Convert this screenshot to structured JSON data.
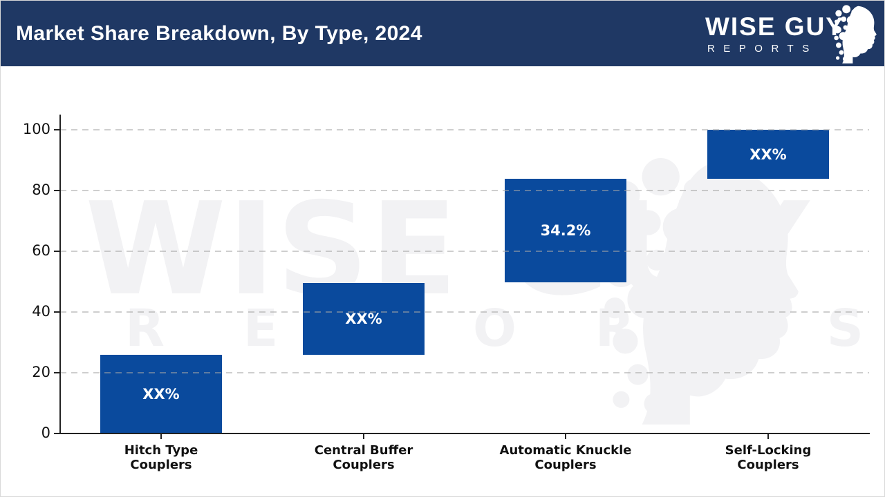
{
  "header": {
    "title": "Market Share Breakdown, By Type, 2024",
    "background_color": "#1f3864",
    "logo": {
      "line1": "WISE GUY",
      "line2": "REPORTS"
    }
  },
  "watermark": {
    "line1": "WISE GUY",
    "line2": "REPORTS"
  },
  "chart_data": {
    "type": "bar",
    "subtype": "waterfall",
    "title": "Market Share Breakdown, By Type, 2024",
    "categories": [
      "Hitch Type\nCouplers",
      "Central Buffer\nCouplers",
      "Automatic Knuckle\nCouplers",
      "Self-Locking\nCouplers"
    ],
    "segments": [
      {
        "category": "Hitch Type Couplers",
        "start": 0,
        "end": 26,
        "label": "XX%"
      },
      {
        "category": "Central Buffer Couplers",
        "start": 26,
        "end": 49.6,
        "label": "XX%"
      },
      {
        "category": "Automatic Knuckle Couplers",
        "start": 49.6,
        "end": 83.8,
        "label": "34.2%"
      },
      {
        "category": "Self-Locking Couplers",
        "start": 83.8,
        "end": 100,
        "label": "XX%"
      }
    ],
    "ylim": [
      0,
      105
    ],
    "yticks": [
      0,
      20,
      40,
      60,
      80,
      100
    ],
    "xlabel": "",
    "ylabel": "",
    "bar_color": "#0a4a9d",
    "grid": true,
    "grid_style": "dashed",
    "legend": false
  }
}
